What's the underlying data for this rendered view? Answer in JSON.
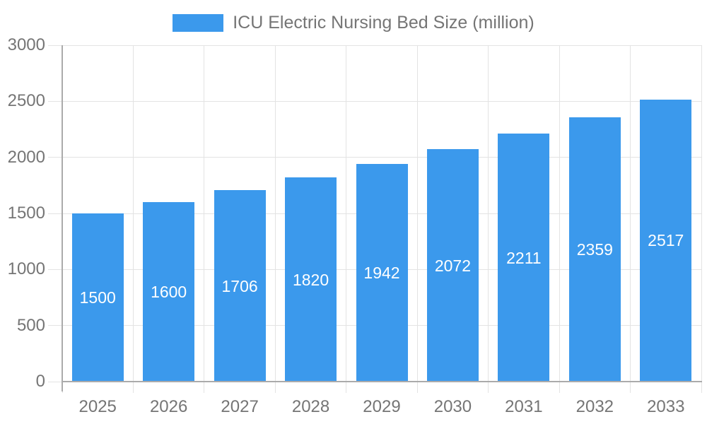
{
  "chart_data": {
    "type": "bar",
    "title": "ICU Electric Nursing Bed Size (million)",
    "categories": [
      "2025",
      "2026",
      "2027",
      "2028",
      "2029",
      "2030",
      "2031",
      "2032",
      "2033"
    ],
    "values": [
      1500,
      1600,
      1706,
      1820,
      1942,
      2072,
      2211,
      2359,
      2517
    ],
    "xlabel": "",
    "ylabel": "",
    "ylim": [
      0,
      3000
    ],
    "yticks": [
      0,
      500,
      1000,
      1500,
      2000,
      2500,
      3000
    ],
    "grid": true,
    "legend_position": "top-center",
    "bar_labels_inside": true,
    "colors": {
      "bar": "#3B99EC",
      "value_label": "#ffffff",
      "axis_text": "#757575",
      "grid_line": "#E3E3E3",
      "axis_line": "#ABABAB",
      "background": "#ffffff"
    }
  }
}
